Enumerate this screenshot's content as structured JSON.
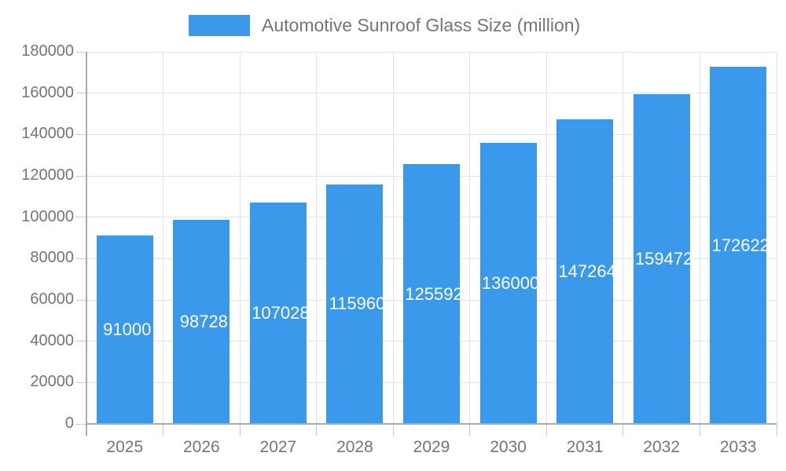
{
  "chart_data": {
    "type": "bar",
    "title": "Automotive Sunroof Glass Size (million)",
    "legend": {
      "label": "Automotive Sunroof Glass Size (million)",
      "position": "top"
    },
    "categories": [
      "2025",
      "2026",
      "2027",
      "2028",
      "2029",
      "2030",
      "2031",
      "2032",
      "2033"
    ],
    "series": [
      {
        "name": "Automotive Sunroof Glass Size (million)",
        "values": [
          91000,
          98728,
          107028,
          115960,
          125592,
          136000,
          147264,
          159472,
          172622
        ]
      }
    ],
    "value_labels": [
      "91000",
      "98728",
      "107028",
      "115960",
      "125592",
      "136000",
      "147264",
      "159472",
      "172622"
    ],
    "xlabel": "",
    "ylabel": "",
    "ylim": [
      0,
      180000
    ],
    "ytick_step": 20000,
    "ytick_labels": [
      "0",
      "20000",
      "40000",
      "60000",
      "80000",
      "100000",
      "120000",
      "140000",
      "160000",
      "180000"
    ],
    "grid": true,
    "value_labels_shown": true,
    "colors": {
      "bar": "#3B99EC",
      "grid": "#e3e3e3",
      "axis": "#ababab",
      "tick": "#c9c9c9",
      "axis_text": "#757575",
      "value_label_text": "#ffffff",
      "background": "#ffffff"
    }
  }
}
